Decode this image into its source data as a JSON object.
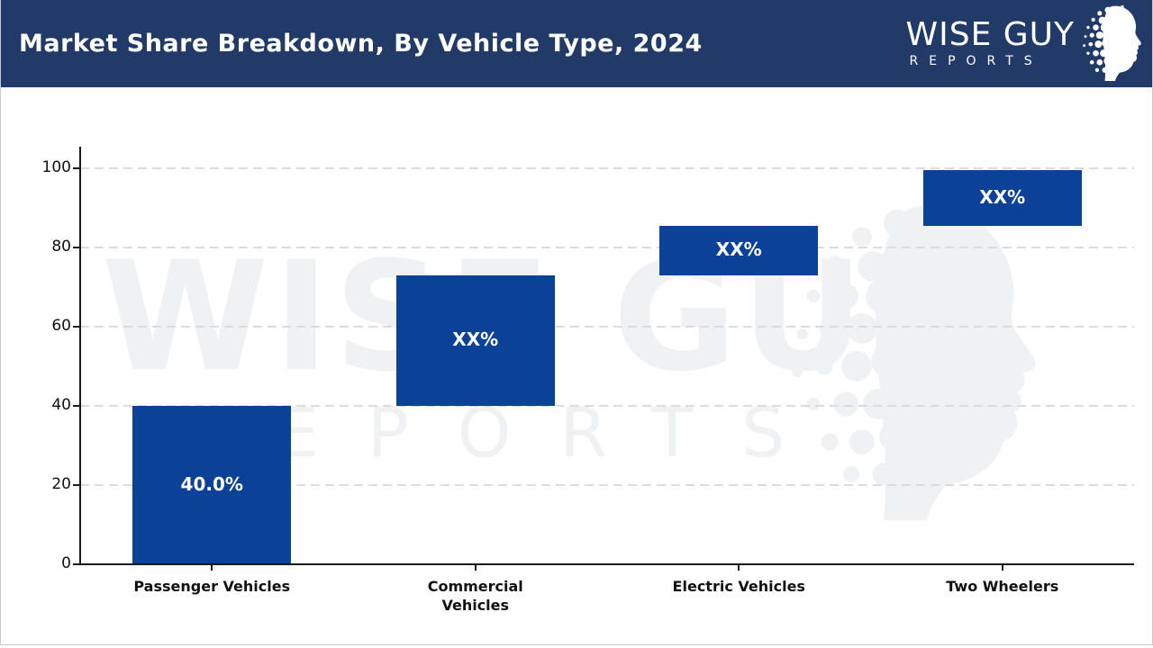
{
  "header": {
    "title": "Market Share Breakdown, By Vehicle Type, 2024",
    "logo": {
      "line1": "WISE GUY",
      "line2": "REPORTS"
    }
  },
  "watermark": {
    "line1": "WISE GUY",
    "line2": "REPORTS"
  },
  "colors": {
    "header_bg": "#223a67",
    "bar": "#0b4297",
    "axis": "#1a1a1a",
    "gridline": "#dcdcdc",
    "watermark": "#f0f1f3",
    "bar_label": "#ffffff"
  },
  "chart_data": {
    "type": "bar",
    "subtype": "waterfall",
    "title": "Market Share Breakdown, By Vehicle Type, 2024",
    "xlabel": "",
    "ylabel": "",
    "ylim": [
      0,
      105.5
    ],
    "yticks": [
      0,
      20,
      40,
      60,
      80,
      100
    ],
    "grid": "horizontal-dashed",
    "legend": "none",
    "categories": [
      "Passenger Vehicles",
      "Commercial Vehicles",
      "Electric Vehicles",
      "Two Wheelers"
    ],
    "category_lines": [
      [
        "Passenger Vehicles"
      ],
      [
        "Commercial",
        "Vehicles"
      ],
      [
        "Electric Vehicles"
      ],
      [
        "Two Wheelers"
      ]
    ],
    "bars": [
      {
        "category": "Passenger Vehicles",
        "start": 0,
        "end": 40,
        "label": "40.0%"
      },
      {
        "category": "Commercial Vehicles",
        "start": 40,
        "end": 73,
        "label": "XX%"
      },
      {
        "category": "Electric Vehicles",
        "start": 73,
        "end": 85.5,
        "label": "XX%"
      },
      {
        "category": "Two Wheelers",
        "start": 85.5,
        "end": 99.5,
        "label": "XX%"
      }
    ]
  }
}
